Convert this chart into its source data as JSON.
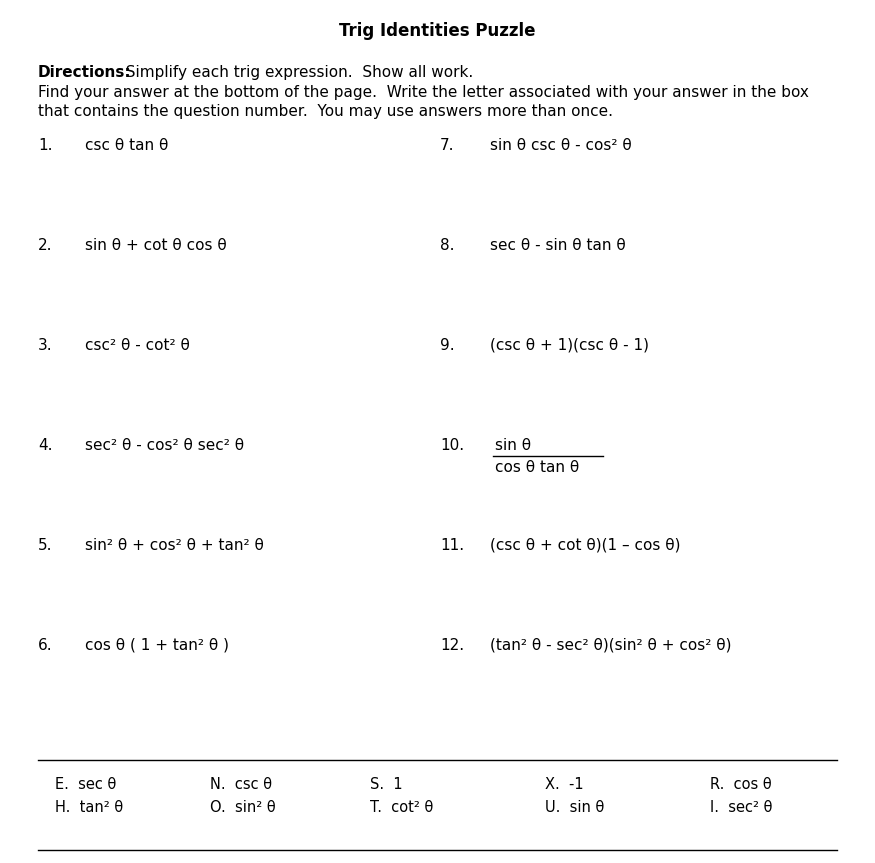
{
  "title": "Trig Identities Puzzle",
  "directions_bold": "Directions:",
  "directions_rest": "  Simplify each trig expression.  Show all work.",
  "directions_line2": "Find your answer at the bottom of the page.  Write the letter associated with your answer in the box",
  "directions_line3": "that contains the question number.  You may use answers more than once.",
  "problems_left": [
    {
      "num": "1.",
      "expr": "csc θ tan θ"
    },
    {
      "num": "2.",
      "expr": "sin θ + cot θ cos θ"
    },
    {
      "num": "3.",
      "expr": "csc² θ - cot² θ"
    },
    {
      "num": "4.",
      "expr": "sec² θ - cos² θ sec² θ"
    },
    {
      "num": "5.",
      "expr": "sin² θ + cos² θ + tan² θ"
    },
    {
      "num": "6.",
      "expr": "cos θ ( 1 + tan² θ )"
    }
  ],
  "problems_right": [
    {
      "num": "7.",
      "expr": "sin θ csc θ - cos² θ",
      "is_frac": false
    },
    {
      "num": "8.",
      "expr": "sec θ - sin θ tan θ",
      "is_frac": false
    },
    {
      "num": "9.",
      "expr": "(csc θ + 1)(csc θ - 1)",
      "is_frac": false
    },
    {
      "num": "10.",
      "expr_num": "sin θ",
      "expr_den": "cos θ tan θ",
      "is_frac": true
    },
    {
      "num": "11.",
      "expr": "(csc θ + cot θ)(1 – cos θ)",
      "is_frac": false
    },
    {
      "num": "12.",
      "expr": "(tan² θ - sec² θ)(sin² θ + cos² θ)",
      "is_frac": false
    }
  ],
  "answers_row1": [
    "E.  sec θ",
    "N.  csc θ",
    "S.  1",
    "X.  -1",
    "R.  cos θ"
  ],
  "answers_row2": [
    "H.  tan² θ",
    "O.  sin² θ",
    "T.  cot² θ",
    "U.  sin θ",
    "I.  sec² θ"
  ],
  "bg_color": "#ffffff",
  "text_color": "#000000",
  "font_size": 11,
  "title_font_size": 12
}
